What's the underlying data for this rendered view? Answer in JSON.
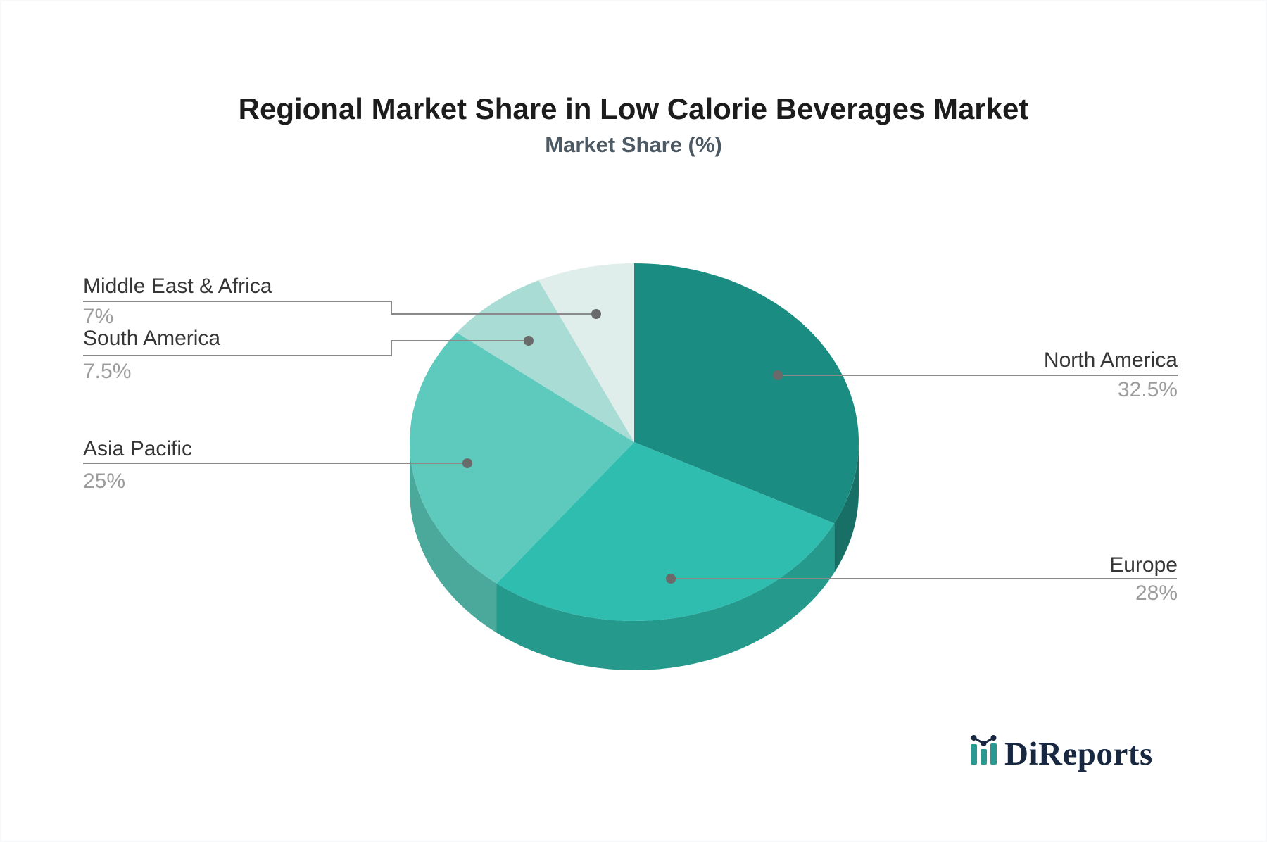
{
  "page": {
    "background": "#ffffff"
  },
  "chart_data": {
    "type": "pie",
    "style": "3d-pie-with-depth",
    "title": "Regional Market Share in Low Calorie Beverages Market",
    "subtitle": "Market Share (%)",
    "unit": "%",
    "total": 100,
    "start_angle_deg": 0,
    "direction": "clockwise",
    "legend_position": "none",
    "labels_style": "callout-leader-lines",
    "slices": [
      {
        "label": "North America",
        "value": 32.5,
        "pct_label": "32.5%",
        "color": "#1b8c81",
        "side_color": "#176f65"
      },
      {
        "label": "Europe",
        "value": 28,
        "pct_label": "28%",
        "color": "#2fbdb0",
        "side_color": "#259a8c"
      },
      {
        "label": "Asia Pacific",
        "value": 25,
        "pct_label": "25%",
        "color": "#5ecabd",
        "side_color": "#4aa99b"
      },
      {
        "label": "South America",
        "value": 7.5,
        "pct_label": "7.5%",
        "color": "#a9dcd4",
        "side_color": "#8fc4bb"
      },
      {
        "label": "Middle East & Africa",
        "value": 7,
        "pct_label": "7%",
        "color": "#dfeeeb",
        "side_color": "#c3d9d5"
      }
    ]
  },
  "colors": {
    "leader_line": "#8a8a8a",
    "dot": "#6a6a6a",
    "label_text": "#363636",
    "pct_text": "#9c9c9c",
    "title_text": "#1c1c1c",
    "subtitle_text": "#4d5a63"
  },
  "branding": {
    "logo_text": "DiReports",
    "logo_icon": "bar-chart-with-trendline-icon",
    "logo_text_color": "#182840",
    "logo_accent_color": "#2a9992"
  }
}
